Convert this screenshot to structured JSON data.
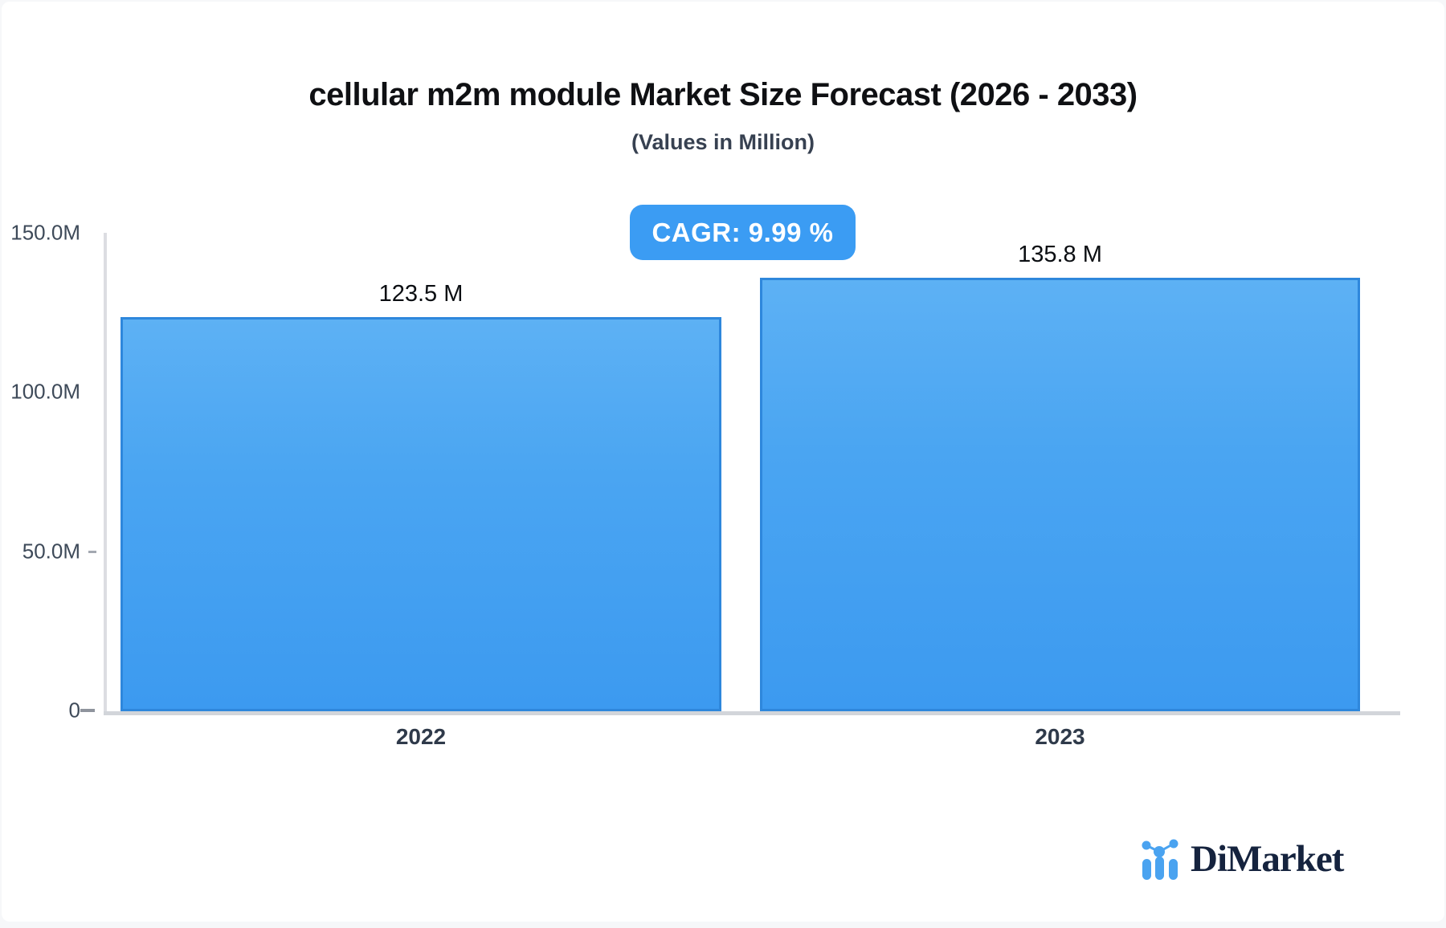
{
  "chart_data": {
    "type": "bar",
    "title": "cellular m2m module Market Size Forecast (2026 - 2033)",
    "subtitle": "(Values in Million)",
    "categories": [
      "2022",
      "2023"
    ],
    "values": [
      123.5,
      135.8
    ],
    "value_labels": [
      "123.5 M",
      "135.8 M"
    ],
    "xlabel": "",
    "ylabel": "",
    "ylim": [
      0,
      150
    ],
    "ytick_values": [
      150,
      100,
      50,
      0
    ],
    "ytick_labels": [
      "150.0M",
      "100.0M",
      "50.0M",
      "0"
    ],
    "grid": false,
    "legend": "none",
    "bar_color_top": "#5db1f4",
    "bar_color_bottom": "#3c9af0",
    "bar_border_color": "#2e87dc"
  },
  "badge": {
    "label": "CAGR: 9.99 %",
    "background": "#3b9cf3",
    "text_color": "#ffffff"
  },
  "branding": {
    "name": "DiMarket",
    "icon": "bar-chart-trend-icon",
    "icon_color": "#4aa3f0",
    "text_color": "#15233e"
  }
}
